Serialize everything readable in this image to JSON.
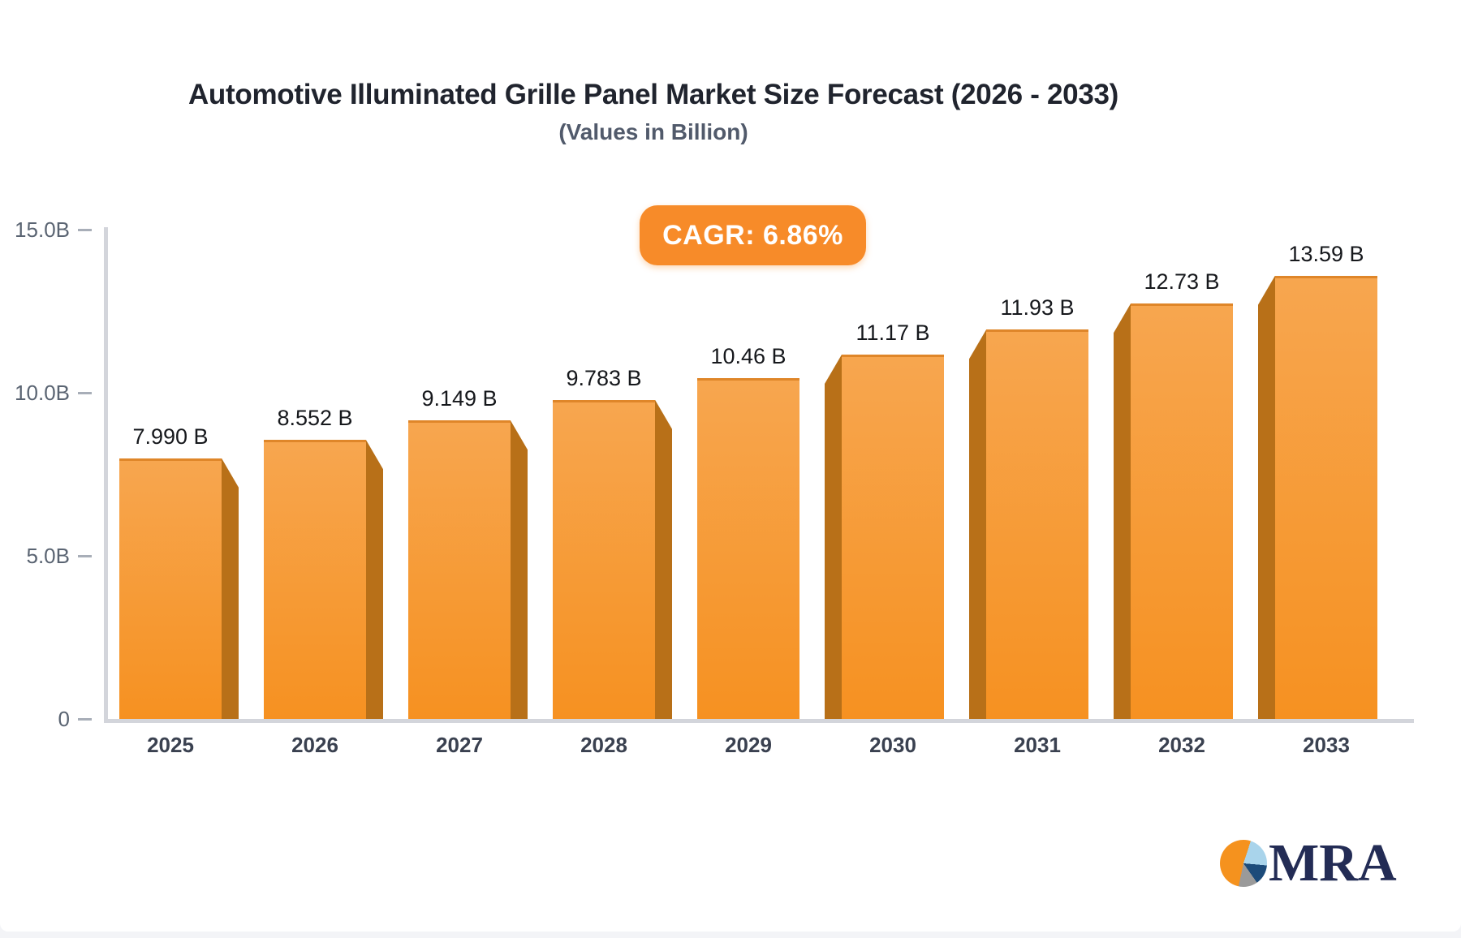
{
  "header": {
    "title": "Automotive Illuminated Grille Panel Market Size Forecast (2026 - 2033)",
    "subtitle": "(Values in Billion)",
    "cagr_label": "CAGR: 6.86%"
  },
  "logo": {
    "text": "MRA"
  },
  "colors": {
    "bar_gradient_top": "#F7A64F",
    "bar_gradient_bottom": "#F69121",
    "bar_side": "#B87018",
    "bar_top_edge": "#DF8629",
    "badge_bg": "#F78B29",
    "axis_line": "#D3D5DB",
    "tick_dash": "#A8AEB8",
    "y_label_text": "#5A6472",
    "x_label_text": "#3A4150",
    "value_label_text": "#16181C",
    "title_text": "#20242E",
    "subtitle_text": "#515A6B",
    "logo_navy": "#232C55",
    "logo_light_blue": "#A9D4EB",
    "logo_dark_blue": "#1C4B7A",
    "logo_gray": "#9A9A9A",
    "logo_orange": "#F5921E"
  },
  "chart_data": {
    "type": "bar",
    "title": "Automotive Illuminated Grille Panel Market Size Forecast (2026 - 2033)",
    "subtitle": "(Values in Billion)",
    "categories": [
      "2025",
      "2026",
      "2027",
      "2028",
      "2029",
      "2030",
      "2031",
      "2032",
      "2033"
    ],
    "values": [
      7.99,
      8.552,
      9.149,
      9.783,
      10.46,
      11.17,
      11.93,
      12.73,
      13.59
    ],
    "labels": [
      "7.990 B",
      "8.552 B",
      "9.149 B",
      "9.783 B",
      "10.46 B",
      "11.17 B",
      "11.93 B",
      "12.73 B",
      "13.59 B"
    ],
    "cagr": "6.86%",
    "xlabel": "",
    "ylabel": "",
    "ylim": [
      0,
      15
    ],
    "y_ticks": [
      {
        "label": "15.0B",
        "value": 15
      },
      {
        "label": "10.0B",
        "value": 10
      },
      {
        "label": "5.0B",
        "value": 5
      },
      {
        "label": "0",
        "value": 0
      }
    ],
    "grid": false,
    "legend": false,
    "bar_style": "3d-extruded-orange"
  }
}
